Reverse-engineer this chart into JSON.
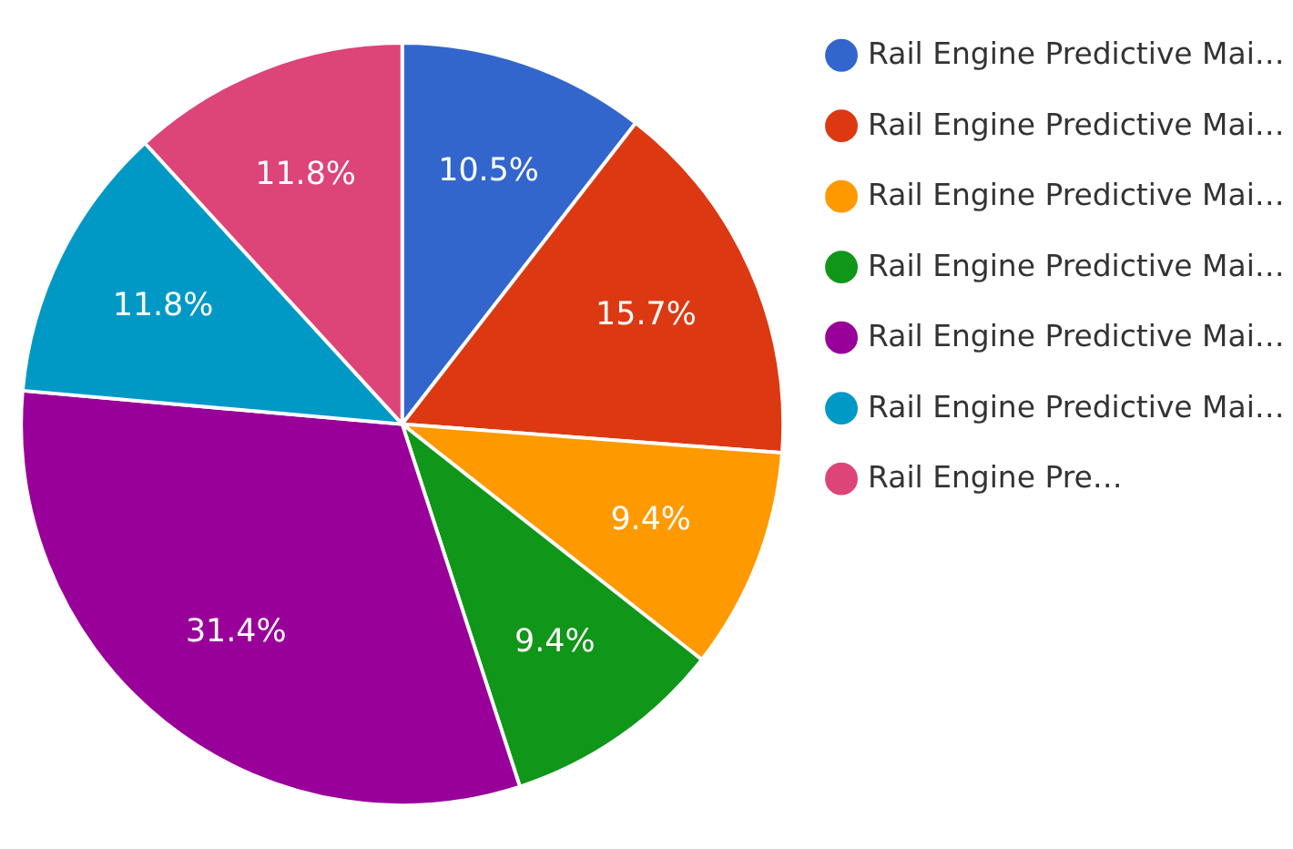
{
  "chart_data": {
    "type": "pie",
    "categories": [
      "Rail Engine Predictive Mai…",
      "Rail Engine Predictive Mai…",
      "Rail Engine Predictive Mai…",
      "Rail Engine Predictive Mai…",
      "Rail Engine Predictive Mai…",
      "Rail Engine Predictive Mai…",
      "Rail Engine Pre…"
    ],
    "values": [
      10.5,
      15.7,
      9.4,
      9.4,
      31.4,
      11.8,
      11.8
    ],
    "value_labels": [
      "10.5%",
      "15.7%",
      "9.4%",
      "9.4%",
      "31.4%",
      "11.8%",
      "11.8%"
    ],
    "colors": [
      "#3366cc",
      "#dc3912",
      "#ff9900",
      "#109618",
      "#990099",
      "#0099c6",
      "#dd4477"
    ],
    "legend": "right"
  }
}
